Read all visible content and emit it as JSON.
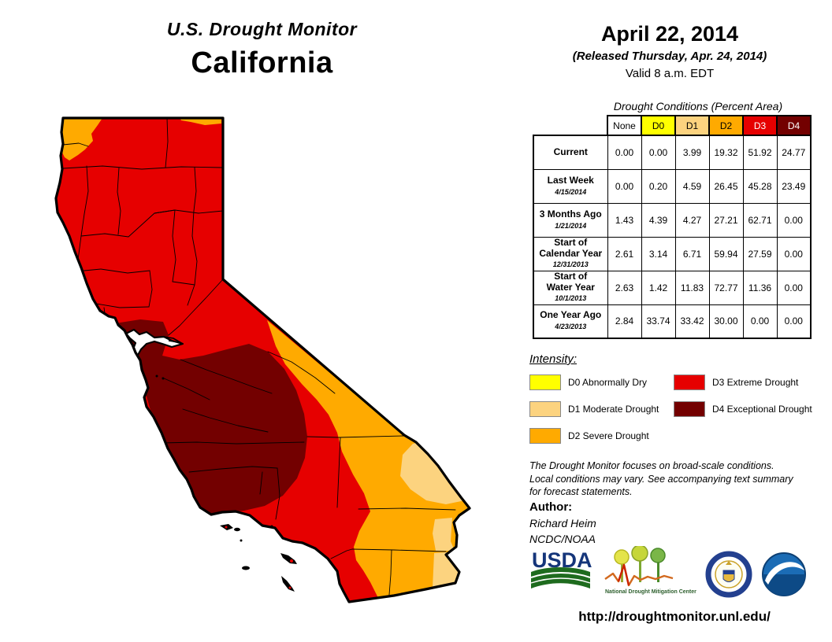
{
  "header": {
    "title": "U.S. Drought Monitor",
    "state": "California",
    "date": "April 22, 2014",
    "released": "(Released Thursday, Apr. 24, 2014)",
    "valid": "Valid 8 a.m. EDT"
  },
  "table": {
    "title": "Drought Conditions (Percent Area)",
    "columns": [
      {
        "label": "None",
        "bg": "#FFFFFF",
        "fg": "#000000"
      },
      {
        "label": "D0",
        "bg": "#FFFF00",
        "fg": "#000000"
      },
      {
        "label": "D1",
        "bg": "#FCD37F",
        "fg": "#000000"
      },
      {
        "label": "D2",
        "bg": "#FFAA00",
        "fg": "#000000"
      },
      {
        "label": "D3",
        "bg": "#E60000",
        "fg": "#FFFFFF"
      },
      {
        "label": "D4",
        "bg": "#730000",
        "fg": "#FFFFFF"
      }
    ],
    "rows": [
      {
        "label_lines": [
          "Current"
        ],
        "date": "",
        "values": [
          "0.00",
          "0.00",
          "3.99",
          "19.32",
          "51.92",
          "24.77"
        ]
      },
      {
        "label_lines": [
          "Last Week"
        ],
        "date": "4/15/2014",
        "values": [
          "0.00",
          "0.20",
          "4.59",
          "26.45",
          "45.28",
          "23.49"
        ]
      },
      {
        "label_lines": [
          "3 Months Ago"
        ],
        "date": "1/21/2014",
        "values": [
          "1.43",
          "4.39",
          "4.27",
          "27.21",
          "62.71",
          "0.00"
        ]
      },
      {
        "label_lines": [
          "Start of",
          "Calendar Year"
        ],
        "date": "12/31/2013",
        "values": [
          "2.61",
          "3.14",
          "6.71",
          "59.94",
          "27.59",
          "0.00"
        ]
      },
      {
        "label_lines": [
          "Start of",
          "Water Year"
        ],
        "date": "10/1/2013",
        "values": [
          "2.63",
          "1.42",
          "11.83",
          "72.77",
          "11.36",
          "0.00"
        ]
      },
      {
        "label_lines": [
          "One Year Ago"
        ],
        "date": "4/23/2013",
        "values": [
          "2.84",
          "33.74",
          "33.42",
          "30.00",
          "0.00",
          "0.00"
        ]
      }
    ]
  },
  "legend": {
    "title": "Intensity:",
    "items": [
      {
        "label": "D0 Abnormally Dry",
        "color": "#FFFF00"
      },
      {
        "label": "D1 Moderate Drought",
        "color": "#FCD37F"
      },
      {
        "label": "D2 Severe Drought",
        "color": "#FFAA00"
      },
      {
        "label": "D3 Extreme Drought",
        "color": "#E60000"
      },
      {
        "label": "D4 Exceptional Drought",
        "color": "#730000"
      }
    ]
  },
  "disclaimer": {
    "lines": [
      "The Drought Monitor focuses on broad-scale conditions.",
      "Local conditions may vary. See accompanying text summary",
      "for forecast statements."
    ]
  },
  "author": {
    "heading": "Author:",
    "name": "Richard Heim",
    "org": "NCDC/NOAA"
  },
  "logos": {
    "usda": "USDA",
    "ndmc": "National Drought Mitigation Center"
  },
  "footer": {
    "url": "http://droughtmonitor.unl.edu/"
  },
  "map": {
    "state": "California",
    "levels": {
      "d0": "#FFFF00",
      "d1": "#FCD37F",
      "d2": "#FFAA00",
      "d3": "#E60000",
      "d4": "#730000",
      "water": "#FFFFFF",
      "border": "#000000"
    }
  }
}
